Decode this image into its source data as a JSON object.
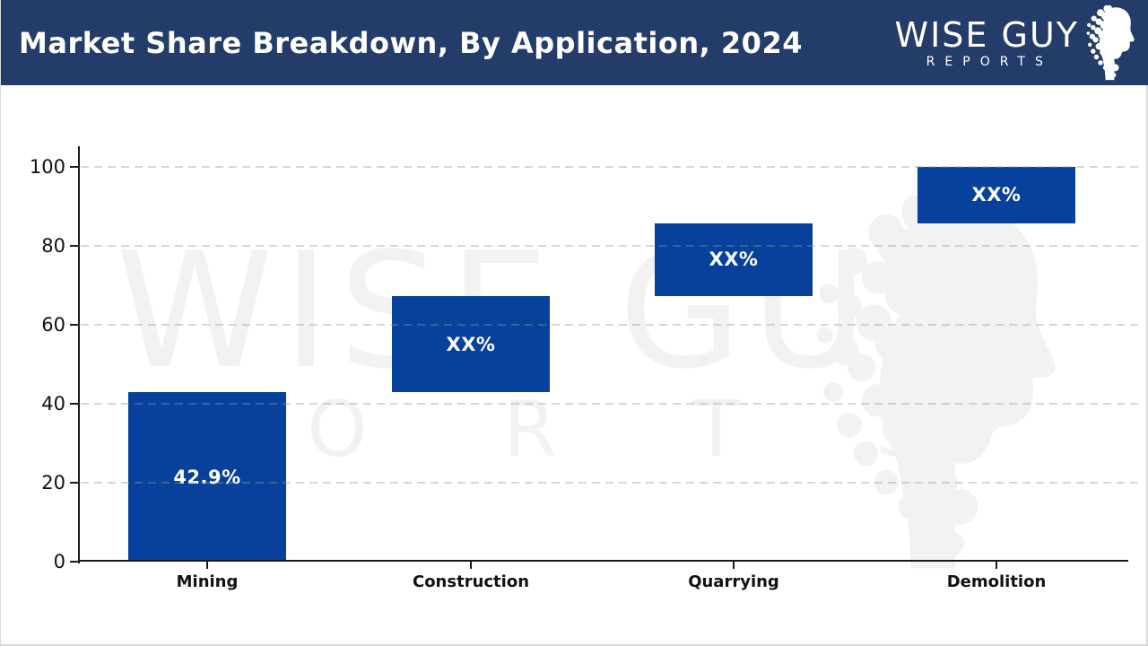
{
  "header": {
    "title": "Market Share Breakdown, By Application, 2024",
    "logo": {
      "line1": "WISE GUY",
      "line2": "REPORTS"
    }
  },
  "watermark": {
    "line1": "WISE GUY",
    "line2": "P O R T S"
  },
  "chart_data": {
    "type": "bar",
    "subtype": "waterfall",
    "title": "Market Share Breakdown, By Application, 2024",
    "categories": [
      "Mining",
      "Construction",
      "Quarrying",
      "Demolition"
    ],
    "segments": [
      {
        "category": "Mining",
        "start": 0,
        "end": 42.9,
        "label": "42.9%"
      },
      {
        "category": "Construction",
        "start": 42.9,
        "end": 67.3,
        "label": "XX%"
      },
      {
        "category": "Quarrying",
        "start": 67.3,
        "end": 85.7,
        "label": "XX%"
      },
      {
        "category": "Demolition",
        "start": 85.7,
        "end": 100,
        "label": "XX%"
      }
    ],
    "ylim": [
      0,
      100
    ],
    "yticks": [
      0,
      20,
      40,
      60,
      80,
      100
    ],
    "grid": "horizontal dashed, drawn over bars",
    "legend": "none",
    "xlabel": "",
    "ylabel": "",
    "bar_color": "#08419c",
    "bar_label_color": "#ffffff",
    "header_background": "#233c69",
    "watermark_color": "#f2f2f2",
    "axis_color": "#1a1a1a"
  }
}
